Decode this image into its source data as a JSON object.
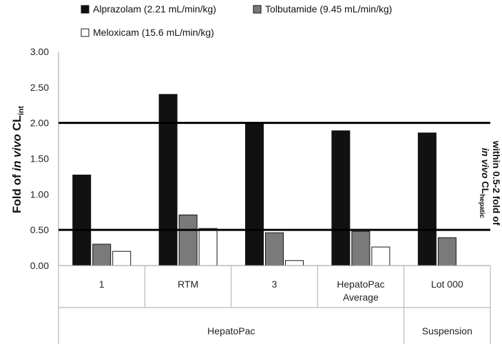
{
  "chart_data": {
    "type": "bar",
    "categories": [
      "1",
      "RTM",
      "3",
      "HepatoPac Average",
      "Lot 000"
    ],
    "category_lines": [
      [
        "1"
      ],
      [
        "RTM"
      ],
      [
        "3"
      ],
      [
        "HepatoPac",
        "Average"
      ],
      [
        "Lot 000"
      ]
    ],
    "groups": [
      {
        "label": "HepatoPac",
        "span": [
          0,
          3
        ]
      },
      {
        "label": "Suspension",
        "span": [
          4,
          4
        ]
      }
    ],
    "series": [
      {
        "name": "Alprazolam (2.21 mL/min/kg)",
        "color": "#111111",
        "values": [
          1.27,
          2.4,
          2.0,
          1.89,
          1.86
        ]
      },
      {
        "name": "Tolbutamide (9.45 mL/min/kg)",
        "color": "#7a7a7a",
        "values": [
          0.3,
          0.71,
          0.46,
          0.48,
          0.39
        ]
      },
      {
        "name": "Meloxicam (15.6 mL/min/kg)",
        "color": "#ffffff",
        "values": [
          0.2,
          0.52,
          0.07,
          0.26,
          null
        ]
      }
    ],
    "ylabel": {
      "pre": "Fold of ",
      "italic": "in vivo",
      "mid": " CL",
      "sub": "int"
    },
    "right_label": {
      "line1": "within 0.5-2 fold of",
      "line2_italic": "in vivo",
      "line2": " CL",
      "line2_sub": "hepatic"
    },
    "yticks": [
      "0.00",
      "0.50",
      "1.00",
      "1.50",
      "2.00",
      "2.50",
      "3.00"
    ],
    "ylim": [
      0,
      3
    ],
    "reference_lines": [
      0.5,
      2.0
    ],
    "legend_position": "top"
  }
}
